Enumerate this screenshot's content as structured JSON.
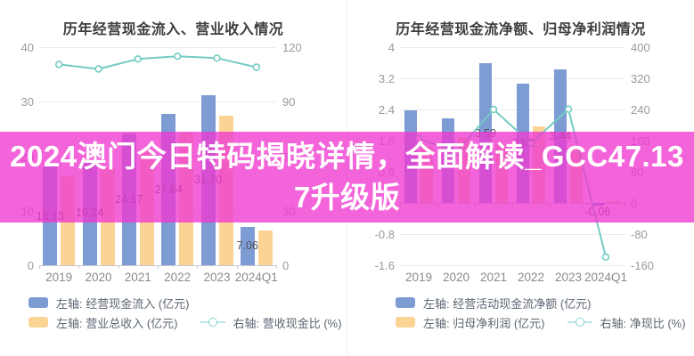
{
  "banner": {
    "line1": "2024澳门今日特码揭晓详情，全面解读_GCC47.13",
    "line2": "7升级版",
    "full_text": "2024澳门今日特码揭晓详情，全面解读_GCC47.137升级版",
    "overlay_color": "rgba(240,56,208,0.78)",
    "text_color": "#ffffff"
  },
  "colors": {
    "bar_primary": "#7d9cd4",
    "bar_secondary": "#fbd495",
    "line": "#74ccc5",
    "grid": "#eaeaef",
    "axis": "#c9c9cf",
    "title_text": "#3d3d3d",
    "tick_text": "#9a9a9a",
    "legend_text": "#5c6672"
  },
  "chart_data": [
    {
      "type": "bar",
      "title": "历年经营现金流入、营业收入情况",
      "categories": [
        "2019",
        "2020",
        "2021",
        "2022",
        "2023",
        "2024Q1"
      ],
      "series": [
        {
          "name": "经营现金流入 (亿元)",
          "type": "bar",
          "axis": "left",
          "values": [
            18.13,
            19.24,
            24.17,
            27.84,
            31.2,
            7.06
          ],
          "labels": [
            "18.13",
            "19.24",
            "24.17",
            "27.84",
            "31.20",
            "7.06"
          ]
        },
        {
          "name": "营业总收入 (亿元)",
          "type": "bar",
          "axis": "left",
          "values": [
            16.4,
            17.8,
            21.3,
            24.3,
            27.4,
            6.4
          ]
        },
        {
          "name": "营收现金比 (%)",
          "type": "line",
          "axis": "right",
          "values": [
            110.5,
            108,
            113.5,
            115,
            114,
            109
          ]
        }
      ],
      "left_axis": {
        "min": 0,
        "max": 40,
        "ticks": [
          "40",
          "30",
          "20",
          "10",
          "0"
        ]
      },
      "right_axis": {
        "min": 0,
        "max": 120,
        "ticks": [
          "120",
          "90",
          "60",
          "30",
          "0"
        ]
      },
      "grid": true,
      "legend_position": "bottom",
      "legend": [
        "左轴: 经营现金流入 (亿元)",
        "左轴: 营业总收入 (亿元)",
        "右轴: 营收现金比 (%)"
      ]
    },
    {
      "type": "bar",
      "title": "历年经营现金流净额、归母净利润情况",
      "categories": [
        "2019",
        "2020",
        "2021",
        "2022",
        "2023",
        "2024Q1"
      ],
      "series": [
        {
          "name": "经营活动现金流净额 (亿元)",
          "type": "bar",
          "axis": "left",
          "values": [
            2.38,
            2.17,
            3.59,
            3.07,
            3.44,
            -0.06
          ],
          "labels": [
            "",
            "",
            "3.59",
            "3.07",
            "3.44",
            "-0.06"
          ]
        },
        {
          "name": "归母净利润 (亿元)",
          "type": "bar",
          "axis": "left",
          "values": [
            1.43,
            1.67,
            1.5,
            1.97,
            1.43,
            0.04
          ]
        },
        {
          "name": "净现比 (%)",
          "type": "line",
          "axis": "right",
          "values": [
            166,
            130,
            240,
            153,
            241,
            -139
          ]
        }
      ],
      "left_axis": {
        "min": -1.6,
        "max": 4,
        "ticks": [
          "4",
          "3.2",
          "2.4",
          "1.6",
          "0.8",
          "0",
          "-0.8",
          "-1.6"
        ]
      },
      "right_axis": {
        "min": -160,
        "max": 400,
        "ticks": [
          "400",
          "320",
          "240",
          "160",
          "80",
          "0",
          "-80",
          "-160"
        ]
      },
      "grid": true,
      "legend_position": "bottom",
      "legend": [
        "左轴: 经营活动现金流净额 (亿元)",
        "左轴: 归母净利润 (亿元)",
        "右轴: 净现比 (%)"
      ]
    }
  ]
}
